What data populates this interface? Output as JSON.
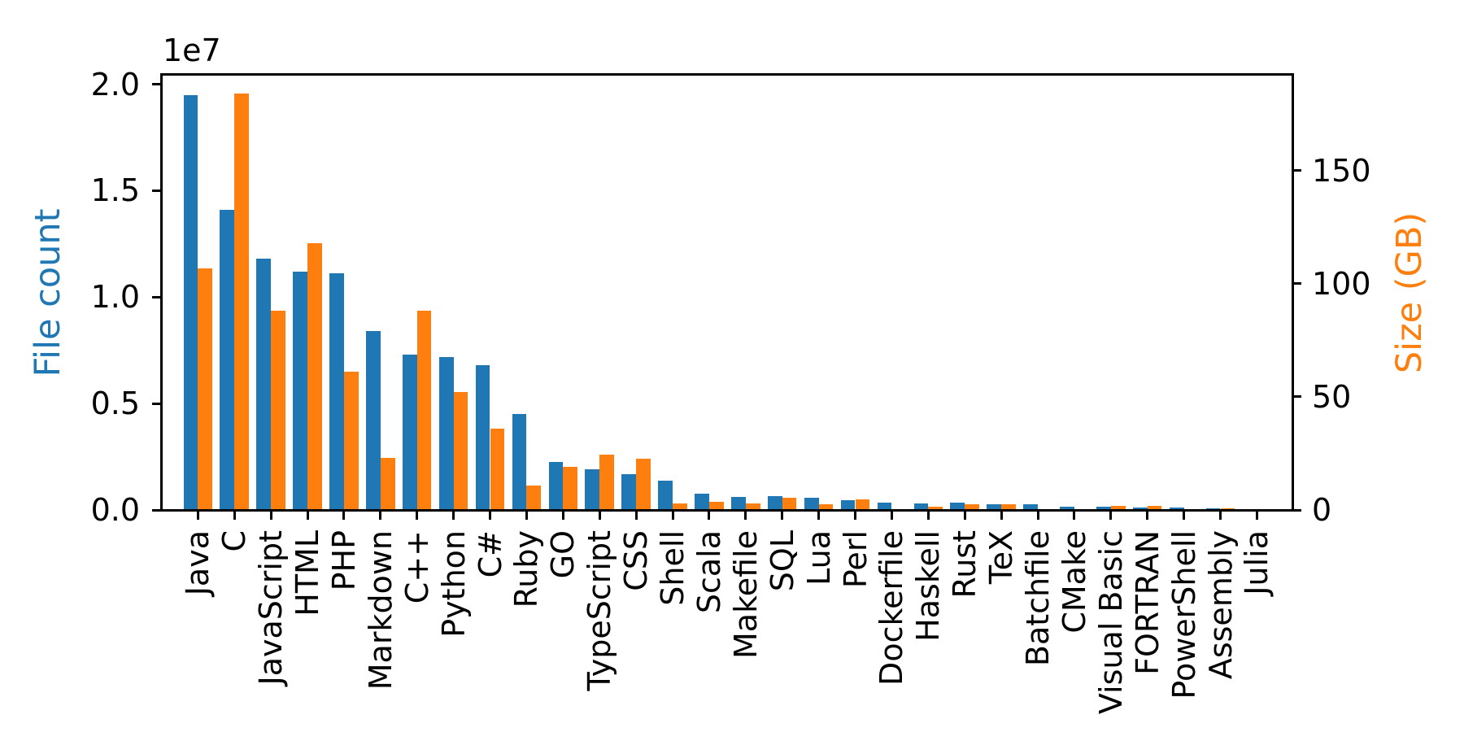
{
  "chart_data": {
    "type": "bar",
    "categories": [
      "Java",
      "C",
      "JavaScript",
      "HTML",
      "PHP",
      "Markdown",
      "C++",
      "Python",
      "C#",
      "Ruby",
      "GO",
      "TypeScript",
      "CSS",
      "Shell",
      "Scala",
      "Makefile",
      "SQL",
      "Lua",
      "Perl",
      "Dockerfile",
      "Haskell",
      "Rust",
      "TeX",
      "Batchfile",
      "CMake",
      "Visual Basic",
      "FORTRAN",
      "PowerShell",
      "Assembly",
      "Julia"
    ],
    "series": [
      {
        "name": "File count",
        "axis": "left",
        "color": "#1f77b4",
        "values": [
          19500000,
          14100000,
          11800000,
          11200000,
          11100000,
          8400000,
          7300000,
          7200000,
          6800000,
          4500000,
          2240000,
          1910000,
          1700000,
          1370000,
          770000,
          630000,
          640000,
          570000,
          470000,
          330000,
          320000,
          330000,
          280000,
          280000,
          170000,
          140000,
          120000,
          110000,
          95000,
          40000
        ]
      },
      {
        "name": "Size (GB)",
        "axis": "right",
        "color": "#ff7f0e",
        "values": [
          107,
          184,
          88,
          118,
          61,
          23,
          88,
          52,
          36,
          10.7,
          19,
          24.3,
          22.6,
          2.8,
          3.7,
          2.8,
          5.4,
          2.4,
          4.6,
          0.5,
          1.6,
          2.4,
          2.4,
          0.4,
          0.2,
          1.8,
          1.7,
          0.4,
          0.7,
          0.3
        ]
      }
    ],
    "left_axis": {
      "label": "File count",
      "color": "#1f77b4",
      "offset_text": "1e7",
      "unit": 10000000,
      "max_value": 20480000,
      "ticks": [
        {
          "value": 0,
          "label": "0.0"
        },
        {
          "value": 5000000,
          "label": "0.5"
        },
        {
          "value": 10000000,
          "label": "1.0"
        },
        {
          "value": 15000000,
          "label": "1.5"
        },
        {
          "value": 20000000,
          "label": "2.0"
        }
      ]
    },
    "right_axis": {
      "label": "Size (GB)",
      "color": "#ff7f0e",
      "max_value": 192.8,
      "ticks": [
        {
          "value": 0,
          "label": "0"
        },
        {
          "value": 50,
          "label": "50"
        },
        {
          "value": 100,
          "label": "100"
        },
        {
          "value": 150,
          "label": "150"
        }
      ]
    },
    "legend": "none",
    "grid": false,
    "background_color": "#ffffff",
    "spine_color": "#000000"
  }
}
